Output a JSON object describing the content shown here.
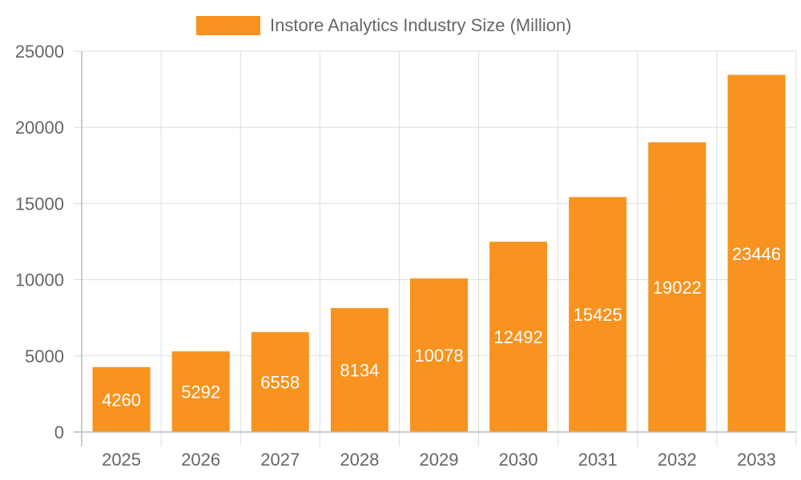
{
  "colors": {
    "bar": "#F7931E"
  },
  "chart_data": {
    "type": "bar",
    "categories": [
      "2025",
      "2026",
      "2027",
      "2028",
      "2029",
      "2030",
      "2031",
      "2032",
      "2033"
    ],
    "series": [
      {
        "name": "Instore Analytics Industry Size (Million)",
        "values": [
          4260,
          5292,
          6558,
          8134,
          10078,
          12492,
          15425,
          19022,
          23446
        ]
      }
    ],
    "ylim": [
      0,
      25000
    ],
    "yticks": [
      0,
      5000,
      10000,
      15000,
      20000,
      25000
    ],
    "grid": true,
    "legend_position": "top-center",
    "data_labels": true
  }
}
